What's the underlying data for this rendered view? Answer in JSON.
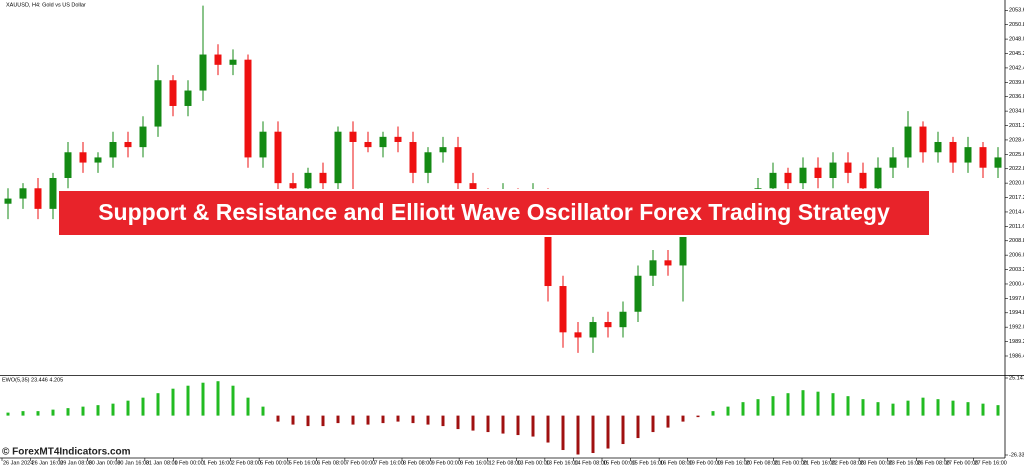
{
  "chart_data": [
    {
      "type": "candlestick",
      "title": "XAUUSD, H4: Gold vs US Dollar",
      "up_color": "#148a14",
      "down_color": "#ee1111",
      "open": [
        2016,
        2017,
        2019,
        2015,
        2021,
        2026,
        2024,
        2025,
        2028,
        2027,
        2031,
        2040,
        2035,
        2038,
        2045,
        2043,
        2044,
        2025,
        2030,
        2020,
        2019,
        2022,
        2020,
        2030,
        2028,
        2027,
        2029,
        2028,
        2022,
        2026,
        2027,
        2020,
        2017,
        2016,
        2018,
        2016,
        2018,
        2000,
        1991,
        1990,
        1993,
        1992,
        1995,
        2002,
        2005,
        2004,
        2013,
        2012,
        2014,
        2013,
        2016,
        2019,
        2022,
        2020,
        2023,
        2021,
        2024,
        2022,
        2019,
        2023,
        2025,
        2031,
        2026,
        2028,
        2024,
        2027,
        2023
      ],
      "high": [
        2019,
        2020,
        2021,
        2022,
        2028,
        2028,
        2026,
        2030,
        2030,
        2033,
        2043,
        2041,
        2040,
        2054.5,
        2047,
        2046,
        2045,
        2032,
        2032,
        2022,
        2023,
        2024,
        2031,
        2032,
        2030,
        2030,
        2031,
        2030,
        2027,
        2029,
        2029,
        2022,
        2019,
        2020,
        2019,
        2020,
        2019,
        2002,
        1993,
        1994,
        1995,
        1997,
        2004,
        2007,
        2007,
        2016,
        2015,
        2016,
        2016,
        2018,
        2021,
        2024,
        2023,
        2025,
        2025,
        2026,
        2026,
        2024,
        2025,
        2027,
        2034,
        2032,
        2030,
        2029,
        2029,
        2028,
        2027
      ],
      "low": [
        2013,
        2015,
        2013,
        2013,
        2019,
        2022,
        2022,
        2023,
        2025,
        2025,
        2029,
        2033,
        2033,
        2036,
        2041,
        2041,
        2023,
        2023,
        2018,
        2017,
        2017,
        2018,
        2018,
        2018,
        2026,
        2025,
        2026,
        2020,
        2020,
        2024,
        2018,
        2015,
        2014,
        2014,
        2014,
        2014,
        1997,
        1988,
        1987,
        1987,
        1990,
        1990,
        1993,
        2000,
        2002,
        1997,
        2010,
        2010,
        2011,
        2011,
        2014,
        2017,
        2018,
        2018,
        2019,
        2019,
        2020,
        2017,
        2017,
        2021,
        2023,
        2024,
        2024,
        2022,
        2022,
        2021,
        2021
      ],
      "close": [
        2017,
        2019,
        2015,
        2021,
        2026,
        2024,
        2025,
        2028,
        2027,
        2031,
        2040,
        2035,
        2038,
        2045,
        2043,
        2044,
        2025,
        2030,
        2020,
        2019,
        2022,
        2020,
        2030,
        2028,
        2027,
        2029,
        2028,
        2022,
        2026,
        2027,
        2020,
        2017,
        2016,
        2018,
        2016,
        2018,
        2000,
        1991,
        1990,
        1993,
        1992,
        1995,
        2002,
        2005,
        2004,
        2013,
        2012,
        2014,
        2013,
        2016,
        2019,
        2022,
        2020,
        2023,
        2021,
        2024,
        2022,
        2019,
        2023,
        2025,
        2031,
        2026,
        2028,
        2024,
        2027,
        2023,
        2025
      ],
      "ylim": [
        1982.9,
        2055.6
      ],
      "yticks": [
        {
          "value": 2053.6,
          "label": "2053.60"
        },
        {
          "value": 2050.8,
          "label": "2050.80"
        },
        {
          "value": 2048,
          "label": "2048.00"
        },
        {
          "value": 2045.2,
          "label": "2045.20"
        },
        {
          "value": 2042.4,
          "label": "2042.40"
        },
        {
          "value": 2039.6,
          "label": "2039.60"
        },
        {
          "value": 2036.8,
          "label": "2036.80"
        },
        {
          "value": 2034,
          "label": "2034.00"
        },
        {
          "value": 2031.2,
          "label": "2031.20"
        },
        {
          "value": 2028.4,
          "label": "2028.40"
        },
        {
          "value": 2025.6,
          "label": "2025.60"
        },
        {
          "value": 2022.8,
          "label": "2022.80"
        },
        {
          "value": 2020,
          "label": "2020.00"
        },
        {
          "value": 2017.2,
          "label": "2017.20"
        },
        {
          "value": 2014.4,
          "label": "2014.40"
        },
        {
          "value": 2011.6,
          "label": "2011.60"
        },
        {
          "value": 2008.8,
          "label": "2008.80"
        },
        {
          "value": 2006,
          "label": "2006.00"
        },
        {
          "value": 2003.2,
          "label": "2003.20"
        },
        {
          "value": 2000.4,
          "label": "2000.40"
        },
        {
          "value": 1997.6,
          "label": "1997.60"
        },
        {
          "value": 1994.8,
          "label": "1994.80"
        },
        {
          "value": 1992,
          "label": "1992.00"
        },
        {
          "value": 1989.2,
          "label": "1989.20"
        },
        {
          "value": 1986.4,
          "label": "1986.40"
        }
      ]
    },
    {
      "type": "bar",
      "title": "EWO(5,35) 23.446 4.205",
      "positive_color": "#22bb22",
      "negative_color": "#a01010",
      "values": [
        2,
        3,
        3,
        4,
        5,
        6,
        7,
        8,
        10,
        12,
        15,
        18,
        20,
        22,
        23,
        20,
        12,
        6,
        -4,
        -6,
        -7,
        -7,
        -5,
        -6,
        -6,
        -5,
        -4,
        -5,
        -6,
        -7,
        -9,
        -10,
        -11,
        -12,
        -13,
        -14,
        -18,
        -23,
        -26,
        -25,
        -22,
        -19,
        -15,
        -11,
        -8,
        -4,
        -1,
        3,
        6,
        9,
        11,
        13,
        15,
        17,
        16,
        15,
        13,
        11,
        9,
        8,
        10,
        12,
        11,
        10,
        9,
        8,
        7
      ],
      "ylim": [
        -26.332,
        25.147
      ],
      "yticks": [
        25.147,
        -26.332
      ]
    }
  ],
  "time_axis": {
    "labels": [
      "26 Jan 2024",
      "26 Jan 16:00",
      "29 Jan 08:00",
      "30 Jan 00:00",
      "30 Jan 16:00",
      "31 Jan 08:00",
      "1 Feb 00:00",
      "1 Feb 16:00",
      "2 Feb 08:00",
      "5 Feb 00:00",
      "5 Feb 16:00",
      "6 Feb 08:00",
      "7 Feb 00:00",
      "7 Feb 16:00",
      "8 Feb 08:00",
      "9 Feb 00:00",
      "9 Feb 16:00",
      "12 Feb 08:00",
      "13 Feb 00:00",
      "13 Feb 16:00",
      "14 Feb 08:00",
      "15 Feb 00:00",
      "15 Feb 16:00",
      "16 Feb 08:00",
      "19 Feb 00:00",
      "19 Feb 16:00",
      "20 Feb 08:00",
      "21 Feb 00:00",
      "21 Feb 16:00",
      "22 Feb 08:00",
      "23 Feb 00:00",
      "23 Feb 16:00",
      "26 Feb 08:00",
      "27 Feb 00:00",
      "27 Feb 16:00"
    ]
  },
  "banner": {
    "text": "Support & Resistance and Elliott Wave Oscillator Forex Trading Strategy"
  },
  "watermark": {
    "text": "© ForexMT4Indicators.com"
  }
}
